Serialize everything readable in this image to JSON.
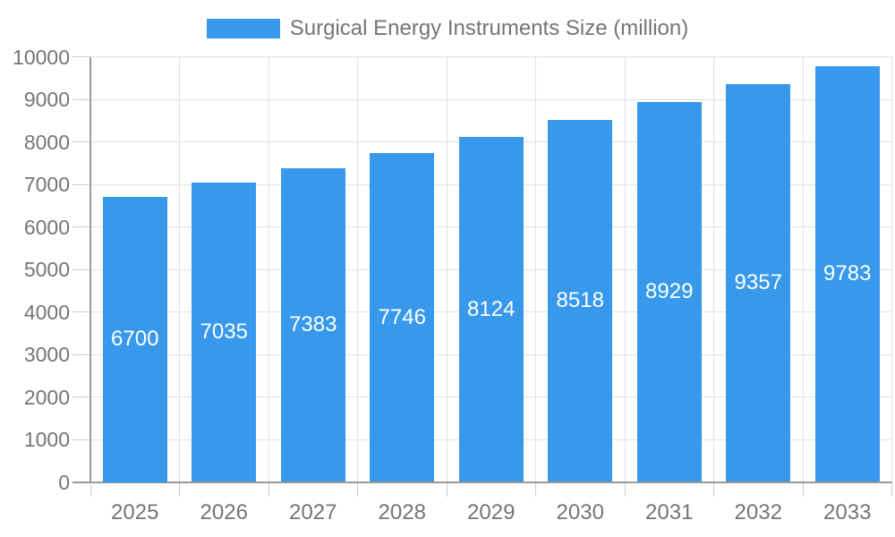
{
  "legend": {
    "label": "Surgical Energy Instruments Size (million)"
  },
  "chart_data": {
    "type": "bar",
    "title": "",
    "series_name": "Surgical Energy Instruments Size (million)",
    "categories": [
      "2025",
      "2026",
      "2027",
      "2028",
      "2029",
      "2030",
      "2031",
      "2032",
      "2033"
    ],
    "values": [
      6700,
      7035,
      7383,
      7746,
      8124,
      8518,
      8929,
      9357,
      9783
    ],
    "value_labels": [
      "6700",
      "7035",
      "7383",
      "7746",
      "8124",
      "8518",
      "8929",
      "9357",
      "9783"
    ],
    "xlabel": "",
    "ylabel": "",
    "ylim": [
      0,
      10000
    ],
    "yticks": [
      0,
      1000,
      2000,
      3000,
      4000,
      5000,
      6000,
      7000,
      8000,
      9000,
      10000
    ],
    "grid": true,
    "legend_position": "top-center",
    "colors": {
      "bar": "#3899EC",
      "bar_label": "#FFFFFF",
      "tick_text": "#757575",
      "axis_line": "#999999",
      "grid_line": "#E2E2E2",
      "tick_line": "#CCCCCC",
      "background": "#FFFFFF"
    }
  }
}
